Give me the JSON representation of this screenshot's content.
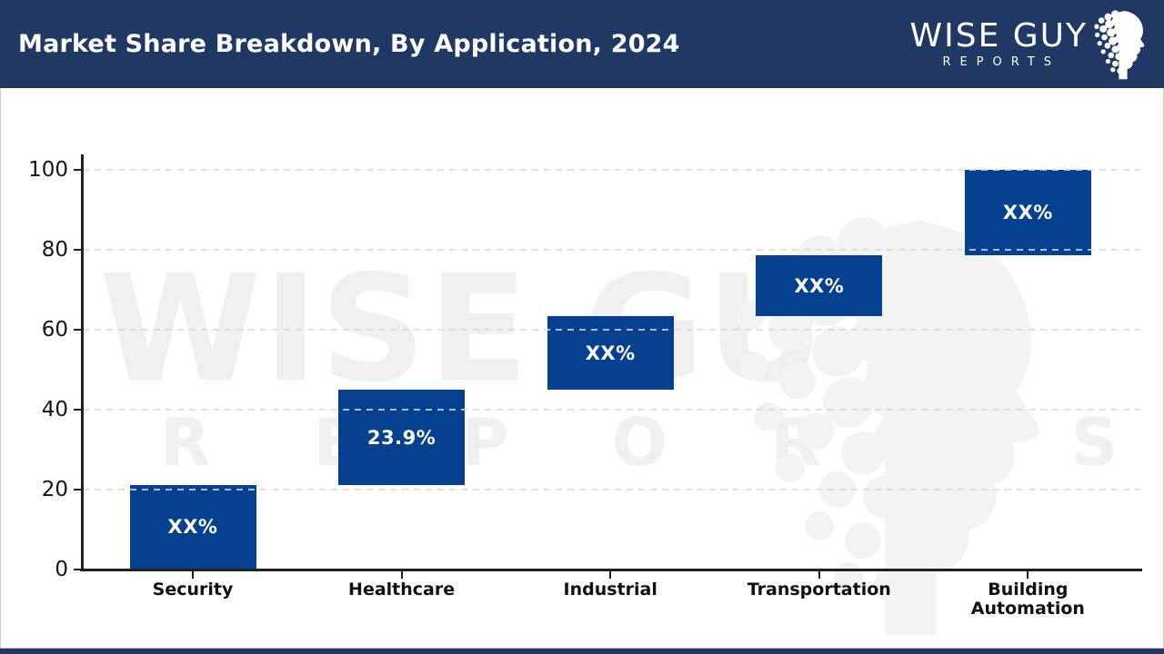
{
  "header": {
    "title": "Market Share Breakdown, By Application, 2024",
    "brand": {
      "line1": "WISE GUY",
      "line2": "REPORTS"
    },
    "bg_color": "#1f3864"
  },
  "watermark": {
    "line1": "WISE GUY",
    "line2": "R E P O R T S"
  },
  "chart_data": {
    "type": "bar",
    "subtype": "waterfall",
    "title": "Market Share Breakdown, By Application, 2024",
    "xlabel": "",
    "ylabel": "",
    "ylim": [
      0,
      104
    ],
    "y_ticks": [
      0,
      20,
      40,
      60,
      80,
      100
    ],
    "grid": "horizontal-dashed",
    "bar_color": "#05418f",
    "categories": [
      "Security",
      "Healthcare",
      "Industrial",
      "Transportation",
      "Building\nAutomation"
    ],
    "segments": [
      {
        "category": "Security",
        "start": 0,
        "end": 21.0,
        "value": 21.0,
        "label": "XX%"
      },
      {
        "category": "Healthcare",
        "start": 21.0,
        "end": 44.9,
        "value": 23.9,
        "label": "23.9%"
      },
      {
        "category": "Industrial",
        "start": 44.9,
        "end": 63.3,
        "value": 18.4,
        "label": "XX%"
      },
      {
        "category": "Transportation",
        "start": 63.3,
        "end": 78.7,
        "value": 15.4,
        "label": "XX%"
      },
      {
        "category": "Building Automation",
        "start": 78.7,
        "end": 100,
        "value": 21.3,
        "label": "XX%"
      }
    ]
  }
}
